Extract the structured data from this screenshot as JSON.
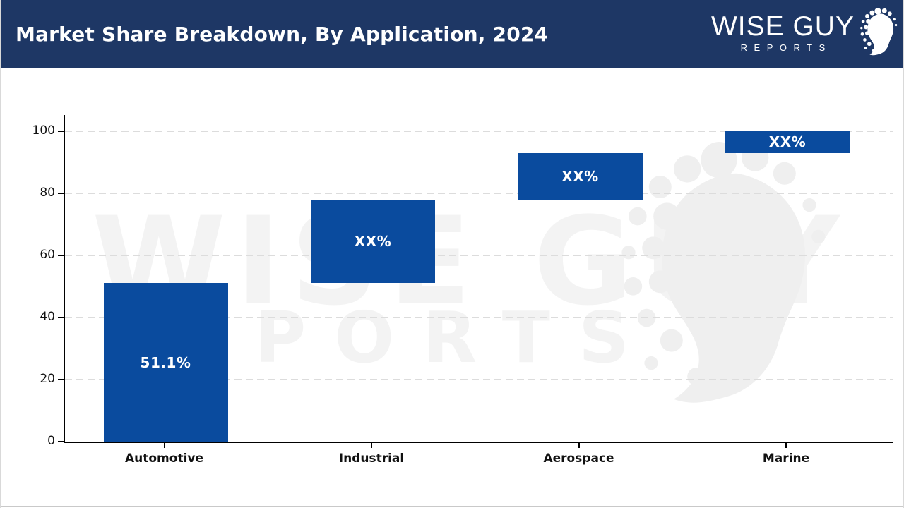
{
  "header": {
    "title": "Market Share Breakdown, By Application, 2024",
    "logo": {
      "line1": "WISE GUY",
      "line2": "REPORTS"
    }
  },
  "watermark": {
    "line1": "WISE GUY",
    "line2": "PORTS"
  },
  "colors": {
    "header_bg": "#1e3765",
    "bar": "#0a4b9e",
    "grid": "#dcdcdc",
    "axis": "#000000",
    "bar_label": "#ffffff",
    "watermark": "#f3f3f3",
    "watermark_head": "#efefef"
  },
  "chart_data": {
    "type": "bar",
    "subtype": "waterfall",
    "title": "Market Share Breakdown, By Application, 2024",
    "categories": [
      "Automotive",
      "Industrial",
      "Aerospace",
      "Marine"
    ],
    "segments": [
      {
        "category": "Automotive",
        "start": 0,
        "end": 51.1,
        "label": "51.1%"
      },
      {
        "category": "Industrial",
        "start": 51.1,
        "end": 78,
        "label": "XX%"
      },
      {
        "category": "Aerospace",
        "start": 78,
        "end": 93,
        "label": "XX%"
      },
      {
        "category": "Marine",
        "start": 93,
        "end": 100,
        "label": "XX%"
      }
    ],
    "xlabel": "",
    "ylabel": "",
    "ylim": [
      0,
      105.2
    ],
    "yticks": [
      0,
      20,
      40,
      60,
      80,
      100
    ],
    "grid": "dashed-horizontal",
    "legend": "none"
  }
}
